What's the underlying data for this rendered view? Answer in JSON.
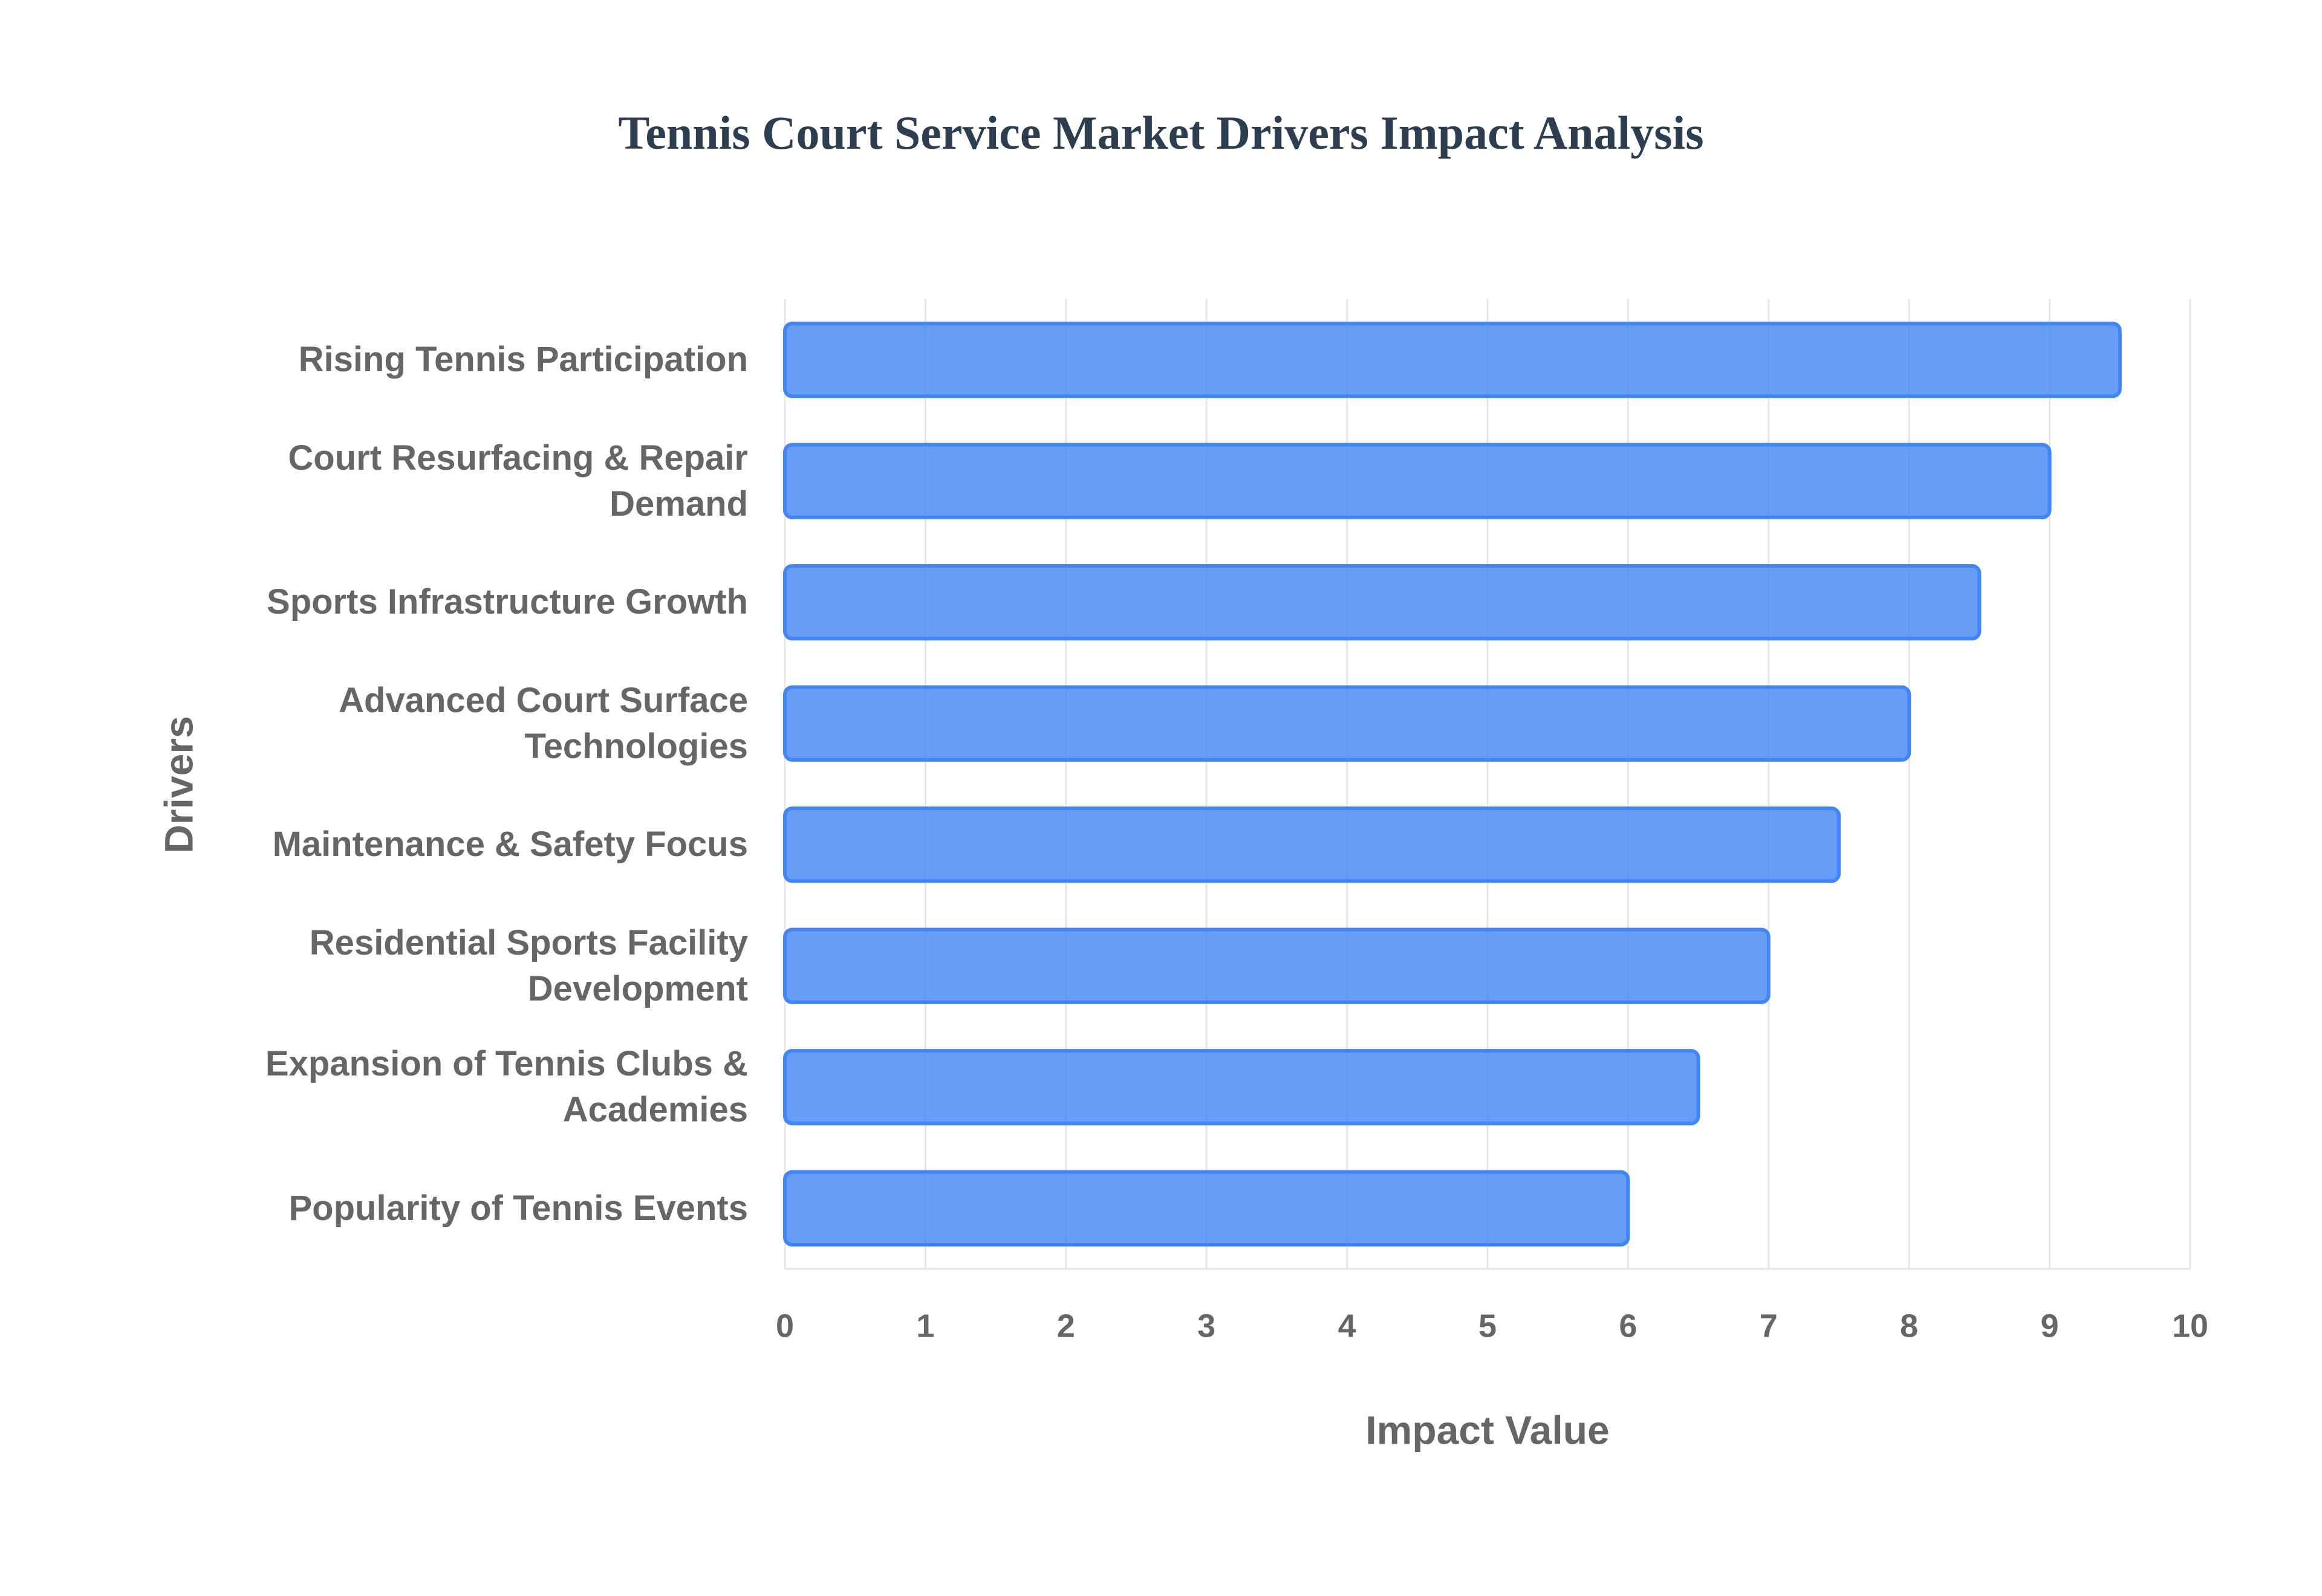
{
  "chart_data": {
    "type": "bar",
    "orientation": "horizontal",
    "title": "Tennis Court Service Market Drivers Impact Analysis",
    "x_label": "Impact Value",
    "y_label": "Drivers",
    "categories": [
      "Rising Tennis Participation",
      "Court Resurfacing & Repair Demand",
      "Sports Infrastructure Growth",
      "Advanced Court Surface Technologies",
      "Maintenance & Safety Focus",
      "Residential Sports Facility Development",
      "Expansion of Tennis Clubs & Academies",
      "Popularity of Tennis Events"
    ],
    "values": [
      9.5,
      9,
      8.5,
      8,
      7.5,
      7,
      6.5,
      6
    ],
    "color": "#4285f4",
    "xlim": [
      0,
      10
    ],
    "xticks": [
      0,
      1,
      2,
      3,
      4,
      5,
      6,
      7,
      8,
      9,
      10
    ],
    "grid": true
  }
}
